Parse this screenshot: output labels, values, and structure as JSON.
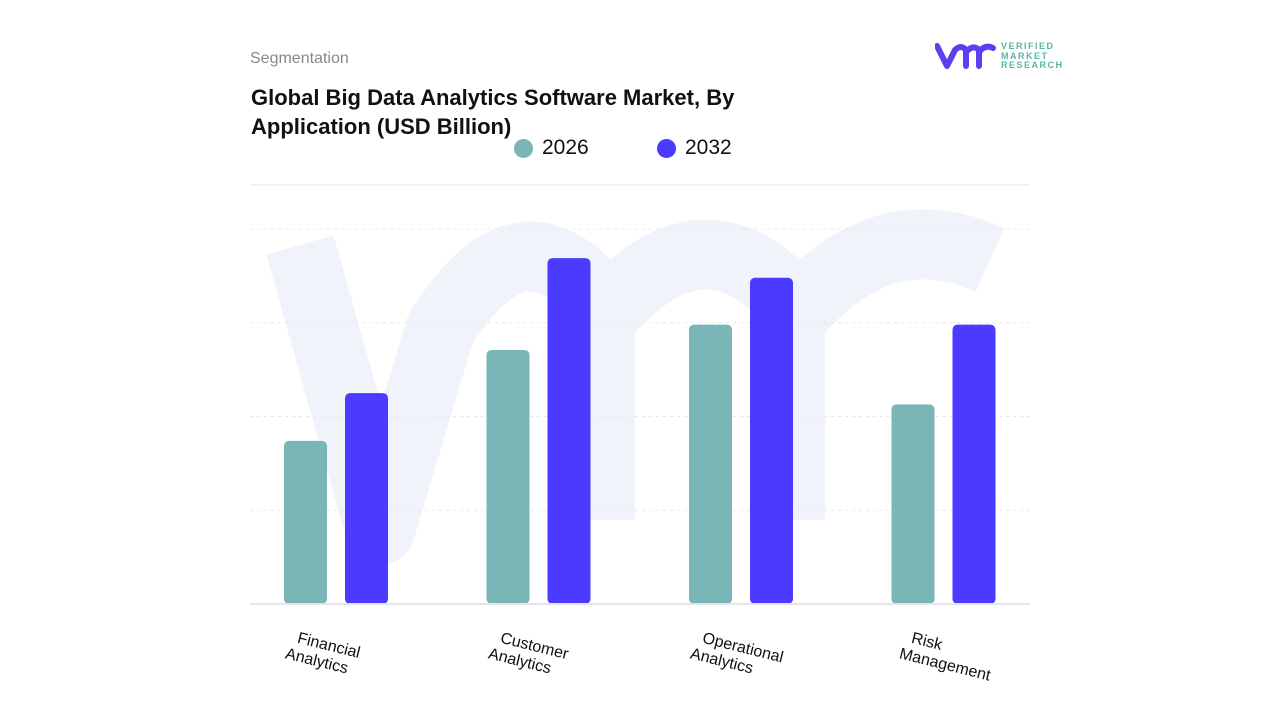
{
  "header": {
    "segment_label": "Segmentation",
    "title": "Global Big Data Analytics Software Market, By Application (USD Billion)"
  },
  "logo": {
    "text_lines": [
      "VERIFIED",
      "MARKET",
      "RESEARCH"
    ]
  },
  "colors": {
    "series_2026": "#7ab5b7",
    "series_2032": "#4b3aff",
    "watermark": "#f1f3fb"
  },
  "chart_data": {
    "type": "bar",
    "title": "Global Big Data Analytics Software Market, By Application (USD Billion)",
    "categories": [
      "Financial Analytics",
      "Customer Analytics",
      "Operational Analytics",
      "Risk Management"
    ],
    "category_lines": [
      [
        "Financial",
        "Analytics"
      ],
      [
        "Customer",
        "Analytics"
      ],
      [
        "Operational",
        "Analytics"
      ],
      [
        "Risk",
        "Management"
      ]
    ],
    "series": [
      {
        "name": "2026",
        "color": "#7ab5b7",
        "values": [
          1.74,
          2.71,
          2.98,
          2.13
        ]
      },
      {
        "name": "2032",
        "color": "#4b3aff",
        "values": [
          2.25,
          3.69,
          3.48,
          2.98
        ]
      }
    ],
    "ylim": [
      0,
      4
    ],
    "y_tick_labels_shown": false,
    "grid": true,
    "legend_position": "top-center",
    "xlabel": "",
    "ylabel": ""
  }
}
